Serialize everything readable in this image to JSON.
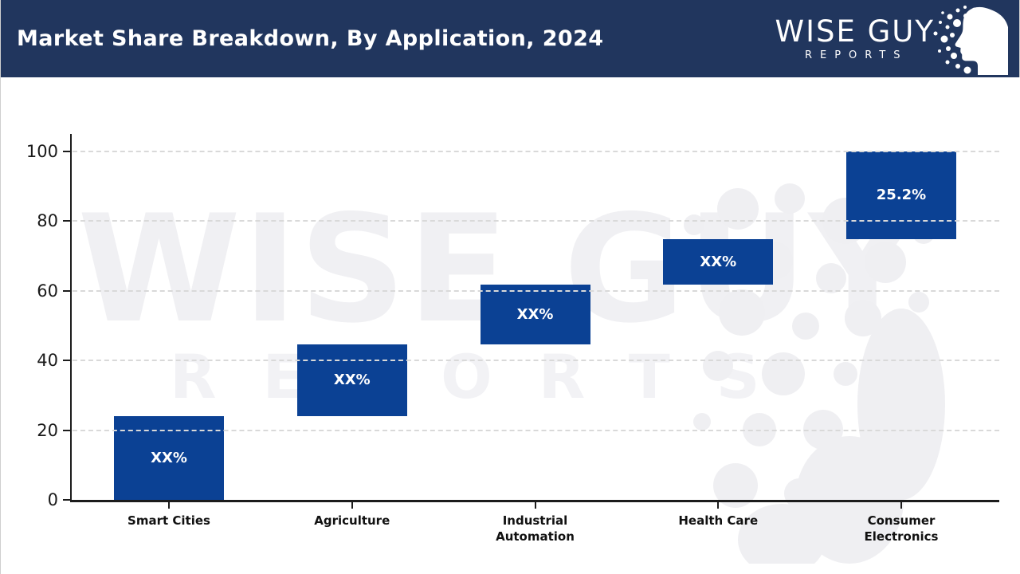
{
  "header": {
    "title": "Market Share Breakdown, By Application, 2024",
    "logo": {
      "line1": "WISE GUY",
      "line2": "REPORTS"
    }
  },
  "watermark": {
    "line1": "WISE GUY",
    "line2": "REPORTS"
  },
  "chart_data": {
    "type": "bar",
    "subtype": "waterfall",
    "title": "Market Share Breakdown, By Application, 2024",
    "categories": [
      "Smart Cities",
      "Agriculture",
      "Industrial Automation",
      "Health Care",
      "Consumer Electronics"
    ],
    "bars": [
      {
        "category": "Smart Cities",
        "start": 0,
        "end": 24.0,
        "label": "XX%"
      },
      {
        "category": "Agriculture",
        "start": 24.0,
        "end": 44.6,
        "label": "XX%"
      },
      {
        "category": "Industrial Automation",
        "start": 44.6,
        "end": 61.8,
        "label": "XX%"
      },
      {
        "category": "Health Care",
        "start": 61.8,
        "end": 74.8,
        "label": "XX%"
      },
      {
        "category": "Consumer Electronics",
        "start": 74.8,
        "end": 100.0,
        "label": "25.2%"
      }
    ],
    "xlabel": "",
    "ylabel": "",
    "ylim": [
      0,
      105
    ],
    "yticks": [
      0,
      20,
      40,
      60,
      80,
      100
    ],
    "grid": "horizontal-dashed",
    "legend": null,
    "bar_color": "#0b4194",
    "bar_label_color": "#ffffff",
    "axis_color": "#1c1c1c",
    "grid_color": "#d9d9d9"
  },
  "colors": {
    "header_bg": "#21365e",
    "header_text": "#ffffff",
    "watermark": "#f0f0f3",
    "page_bg": "#ffffff"
  }
}
